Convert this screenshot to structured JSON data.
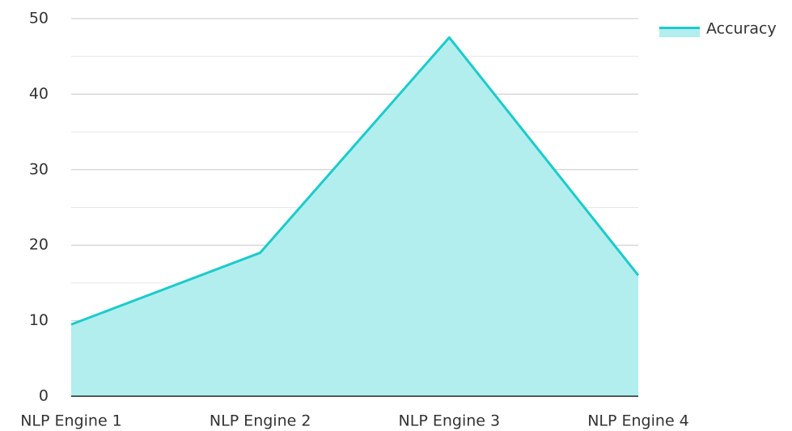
{
  "chart_data": {
    "type": "area",
    "categories": [
      "NLP Engine 1",
      "NLP Engine 2",
      "NLP Engine 3",
      "NLP Engine 4"
    ],
    "series": [
      {
        "name": "Accuracy",
        "color": "#1ccbcb",
        "fill": "#b2eeee",
        "values": [
          9.5,
          19,
          47.5,
          16
        ]
      }
    ],
    "ylim": [
      0,
      50
    ],
    "yticks": [
      0,
      10,
      20,
      30,
      40,
      50
    ],
    "grid": true,
    "minor_grid": true,
    "legend": "top-right"
  }
}
